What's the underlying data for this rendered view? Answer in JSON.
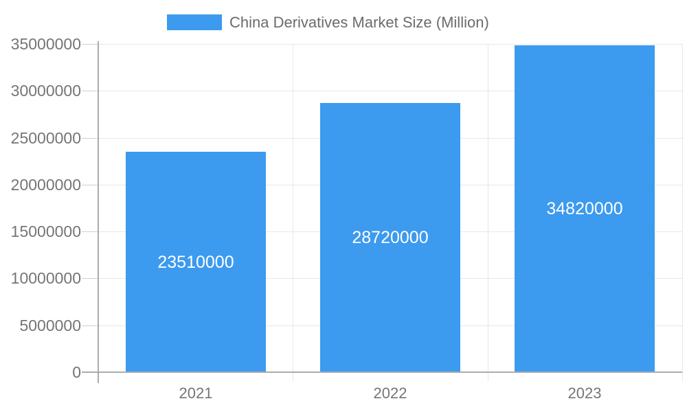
{
  "chart_data": {
    "type": "bar",
    "title": "China Derivatives Market Size (Million)",
    "categories": [
      "2021",
      "2022",
      "2023"
    ],
    "series": [
      {
        "name": "China Derivatives Market Size (Million)",
        "values": [
          23510000,
          28720000,
          34820000
        ]
      }
    ],
    "values": [
      23510000,
      28720000,
      34820000
    ],
    "value_labels": [
      "23510000",
      "28720000",
      "34820000"
    ],
    "xlabel": "",
    "ylabel": "",
    "ylim": [
      0,
      35000000
    ],
    "yticks": [
      0,
      5000000,
      10000000,
      15000000,
      20000000,
      25000000,
      30000000,
      35000000
    ],
    "grid": true,
    "legend_position": "top"
  },
  "legend": {
    "label": "China Derivatives Market Size (Million)"
  },
  "colors": {
    "background": "#ffffff",
    "bar": "#3C9AEF",
    "grid": "#e7e7e7",
    "tick": "#cfcfcf",
    "axis": "#ababab",
    "axis_label": "#757575",
    "title_text": "#6b6b6b",
    "value_label": "#ffffff"
  }
}
